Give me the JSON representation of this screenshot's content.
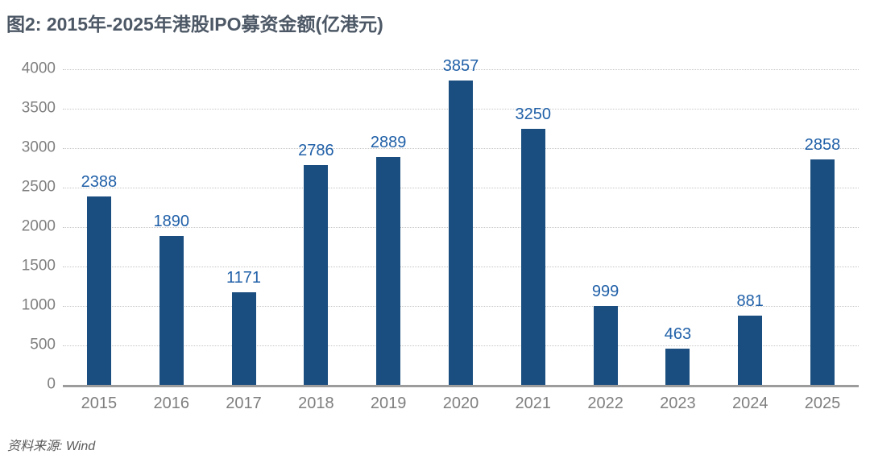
{
  "title": "图2: 2015年-2025年港股IPO募资金额(亿港元)",
  "source": "资料来源: Wind",
  "colors": {
    "bar": "#1B4E80",
    "value_label": "#2060A8",
    "axis_text": "#7F7F7F",
    "gridline": "#C6C6C6",
    "baseline": "#9C9C9C",
    "title_text": "#4D5866",
    "source_text": "#595959"
  },
  "chart_data": {
    "type": "bar",
    "title": "图2: 2015年-2025年港股IPO募资金额(亿港元)",
    "categories": [
      "2015",
      "2016",
      "2017",
      "2018",
      "2019",
      "2020",
      "2021",
      "2022",
      "2023",
      "2024",
      "2025"
    ],
    "values": [
      2388,
      1890,
      1171,
      2786,
      2889,
      3857,
      3250,
      999,
      463,
      881,
      2858
    ],
    "xlabel": "",
    "ylabel": "",
    "ylim": [
      0,
      4000
    ],
    "ytick_step": 500,
    "yticks": [
      0,
      500,
      1000,
      1500,
      2000,
      2500,
      3000,
      3500,
      4000
    ],
    "grid": "horizontal-dotted",
    "legend": "none",
    "value_labels": "above-bars"
  }
}
